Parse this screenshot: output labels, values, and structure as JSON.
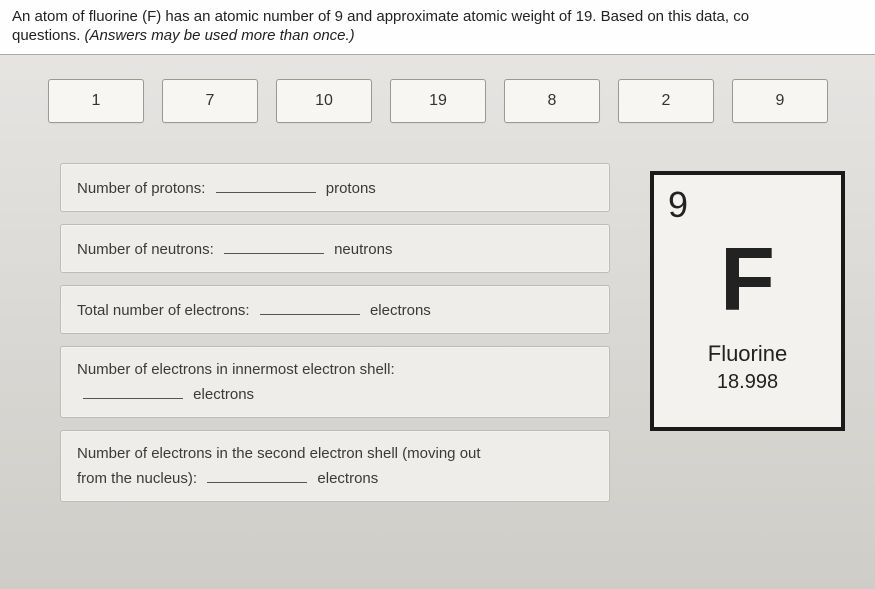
{
  "header": {
    "line1_a": "An atom of fluorine (F) has an atomic number of 9 and approximate atomic weight of 19.  Based on this data, co",
    "line2_a": "questions.  ",
    "line2_b": "(Answers may be used more than once.)"
  },
  "answers": [
    "1",
    "7",
    "10",
    "19",
    "8",
    "2",
    "9"
  ],
  "questions": {
    "q1_a": "Number of protons:",
    "q1_b": "protons",
    "q2_a": "Number of neutrons:",
    "q2_b": "neutrons",
    "q3_a": "Total number of electrons:",
    "q3_b": "electrons",
    "q4_a": "Number of electrons in innermost electron shell:",
    "q4_b": "electrons",
    "q5_a": "Number of electrons in the second electron shell (moving out",
    "q5_b": "from the nucleus):",
    "q5_c": "electrons"
  },
  "element": {
    "number": "9",
    "symbol": "F",
    "name": "Fluorine",
    "mass": "18.998"
  },
  "colors": {
    "border_dark": "#1a1a1a",
    "box_bg": "#eeede9",
    "box_border": "#bdbcb7"
  }
}
